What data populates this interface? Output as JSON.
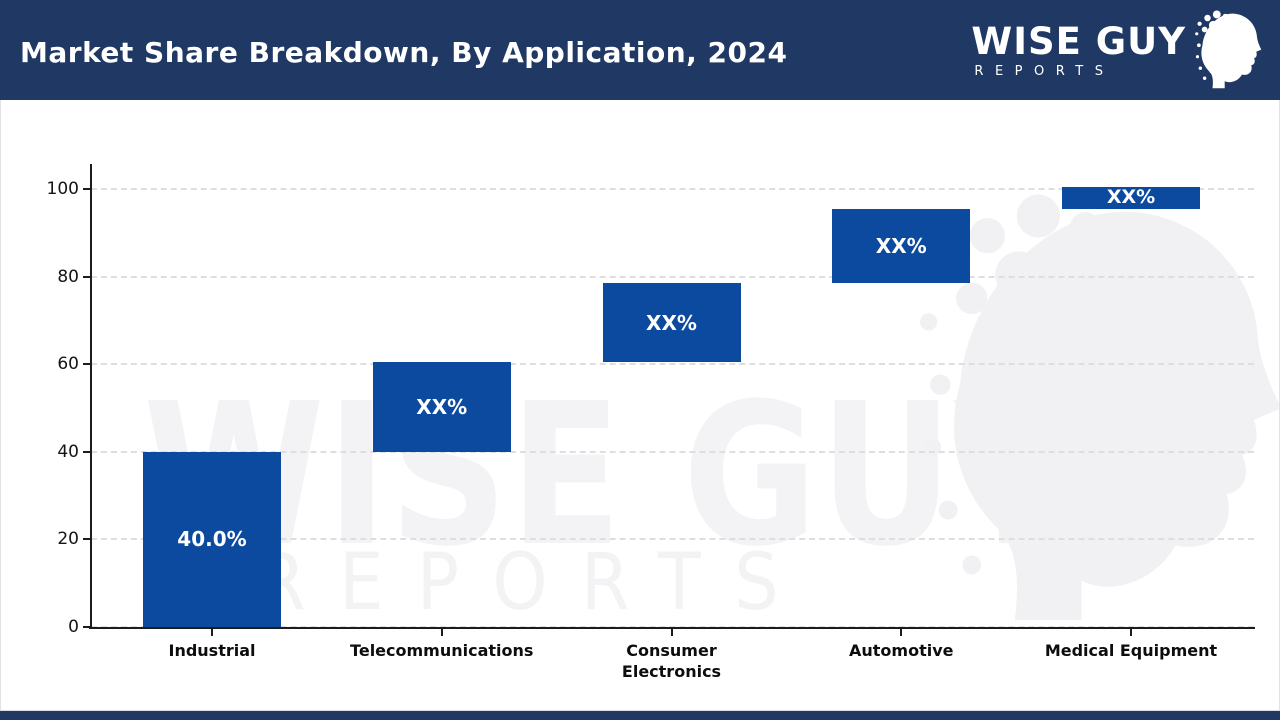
{
  "header": {
    "title": "Market Share Breakdown, By Application, 2024",
    "bg_color": "#203864",
    "logo": {
      "line1": "WISE GUY",
      "line2": "REPORTS"
    }
  },
  "watermark": {
    "line1": "WISE GUY",
    "line2": "REPORTS"
  },
  "chart_data": {
    "type": "bar",
    "subtype": "waterfall",
    "title": "Market Share Breakdown, By Application, 2024",
    "categories": [
      {
        "name": "Industrial",
        "lines": [
          "Industrial"
        ]
      },
      {
        "name": "Telecommunications",
        "lines": [
          "Telecommunications"
        ]
      },
      {
        "name": "Consumer Electronics",
        "lines": [
          "Consumer",
          "Electronics"
        ]
      },
      {
        "name": "Automotive",
        "lines": [
          "Automotive"
        ]
      },
      {
        "name": "Medical Equipment",
        "lines": [
          "Medical Equipment"
        ]
      }
    ],
    "segments": [
      {
        "category": "Industrial",
        "start": 0,
        "end": 40,
        "label": "40.0%"
      },
      {
        "category": "Telecommunications",
        "start": 40,
        "end": 60.5,
        "label": "XX%"
      },
      {
        "category": "Consumer Electronics",
        "start": 60.5,
        "end": 78.5,
        "label": "XX%"
      },
      {
        "category": "Automotive",
        "start": 78.5,
        "end": 95.5,
        "label": "XX%"
      },
      {
        "category": "Medical Equipment",
        "start": 95.5,
        "end": 100.5,
        "label": "XX%"
      }
    ],
    "y_ticks": [
      "0",
      "20",
      "40",
      "60",
      "80",
      "100"
    ],
    "ylim": [
      0,
      105.5
    ],
    "grid": true,
    "legend_position": "none",
    "bar_color": "#0b4a9e",
    "bar_label_color": "#ffffff",
    "axis_color": "#1c1c1c",
    "grid_color": "#dedede"
  },
  "footer": {
    "bg_color": "#203864"
  }
}
